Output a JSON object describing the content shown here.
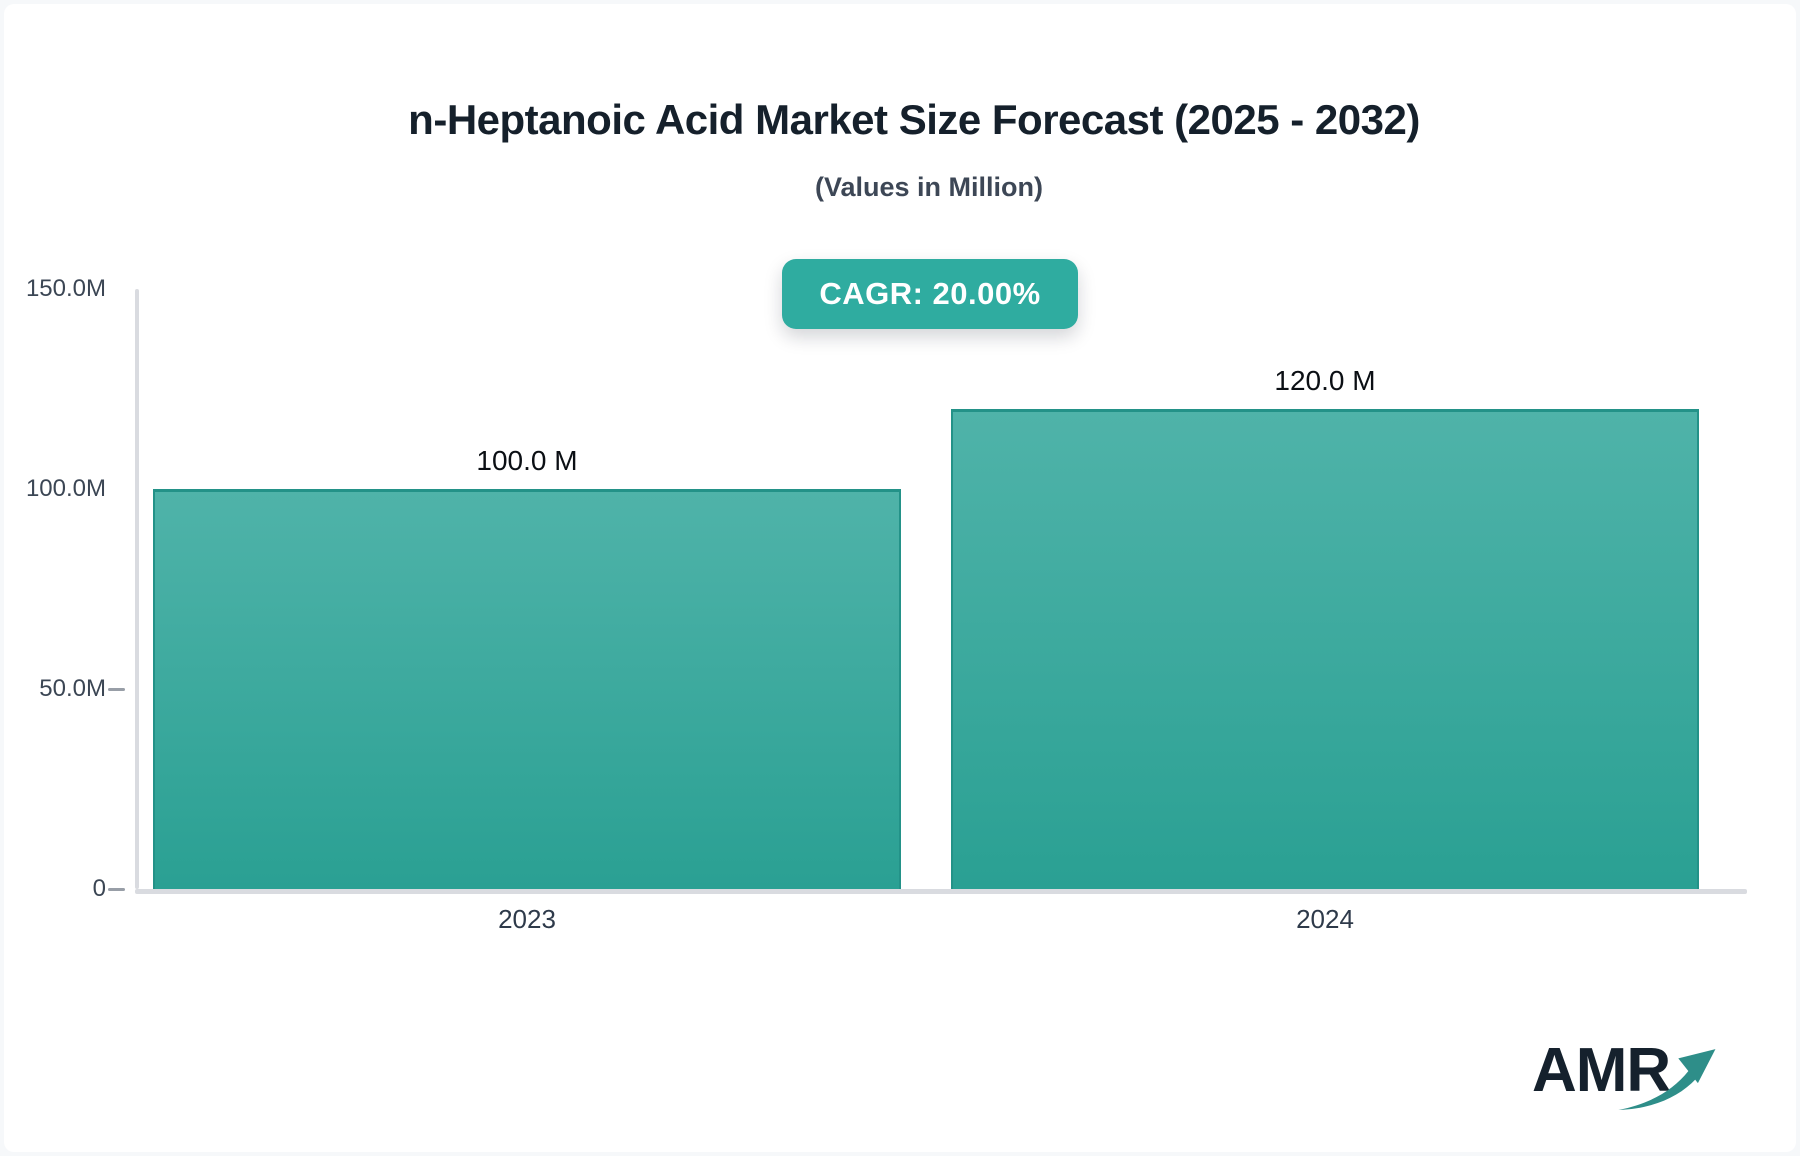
{
  "header": {
    "title": "n-Heptanoic Acid Market Size Forecast (2025 - 2032)",
    "subtitle": "(Values in Million)"
  },
  "badge": {
    "label": "CAGR: 20.00%"
  },
  "chart_data": {
    "type": "bar",
    "title": "n-Heptanoic Acid Market Size Forecast (2025 - 2032)",
    "subtitle": "(Values in Million)",
    "cagr_label": "CAGR: 20.00%",
    "categories": [
      "2023",
      "2024"
    ],
    "values": [
      100.0,
      120.0
    ],
    "value_labels": [
      "100.0 M",
      "120.0 M"
    ],
    "xlabel": "",
    "ylabel": "",
    "ylim": [
      0,
      150
    ],
    "yticks": [
      {
        "label": "150.0M",
        "value": 150,
        "dash": false
      },
      {
        "label": "100.0M",
        "value": 100,
        "dash": false
      },
      {
        "label": "50.0M",
        "value": 50,
        "dash": true
      },
      {
        "label": "0",
        "value": 0,
        "dash": true
      }
    ],
    "grid": false,
    "legend": "none"
  },
  "logo": {
    "text": "AMR"
  },
  "colors": {
    "accent": "#2faca0",
    "badge_text": "#ffffff",
    "bar_top": "#4fb3a9",
    "bar_bottom": "#2aa093",
    "bar_stroke": "#239288",
    "axis_line": "#d9dbe0",
    "title_text": "#15202b",
    "subtitle_text": "#3d4756",
    "tick_text": "#3b4654",
    "xtick_text": "#2e3a4a",
    "value_text": "#0b0f14",
    "logo_text": "#15212d",
    "logo_arrow": "#2e8e89"
  }
}
